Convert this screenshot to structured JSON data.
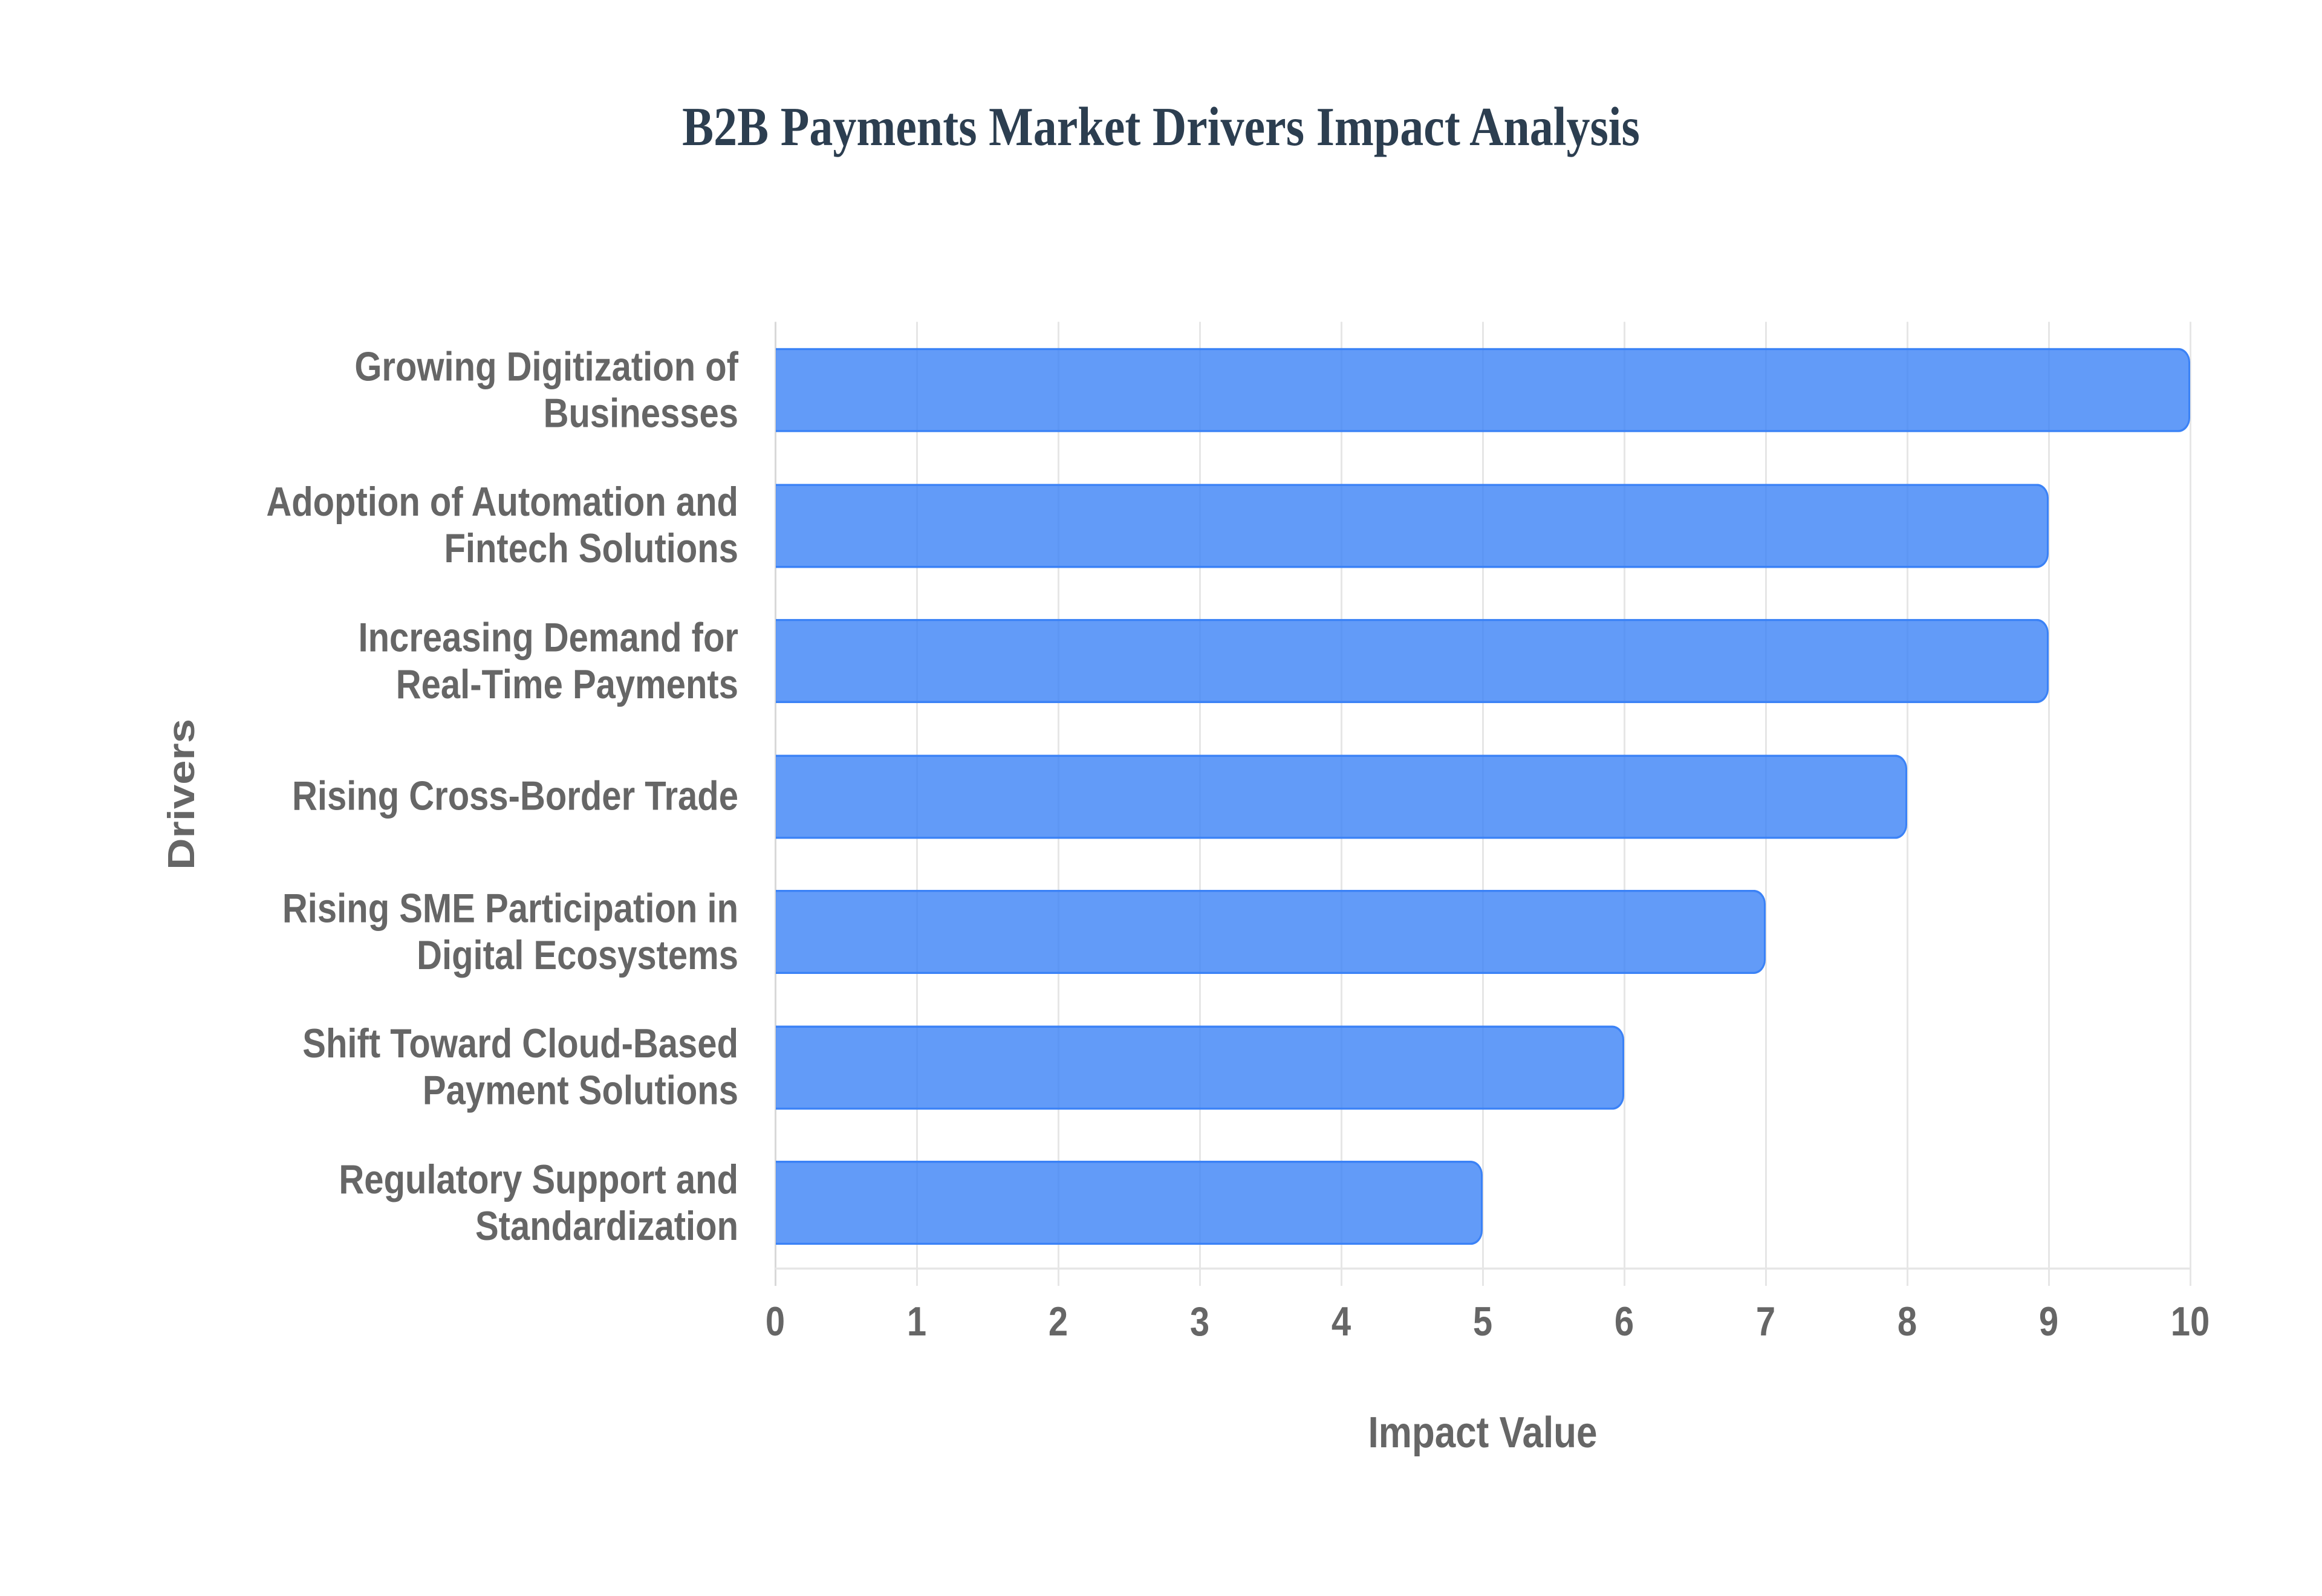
{
  "title": "B2B Payments Market Drivers Impact Analysis",
  "x_axis": {
    "title": "Impact Value",
    "ticks": [
      "0",
      "1",
      "2",
      "3",
      "4",
      "5",
      "6",
      "7",
      "8",
      "9",
      "10"
    ]
  },
  "y_axis": {
    "title": "Drivers"
  },
  "bars": [
    {
      "label": "Growing Digitization of\nBusinesses",
      "value": 10
    },
    {
      "label": "Adoption of Automation and\nFintech Solutions",
      "value": 9
    },
    {
      "label": "Increasing Demand for\nReal-Time Payments",
      "value": 9
    },
    {
      "label": "Rising Cross-Border Trade",
      "value": 8
    },
    {
      "label": "Rising SME Participation in\nDigital Ecosystems",
      "value": 7
    },
    {
      "label": "Shift Toward Cloud-Based\nPayment Solutions",
      "value": 6
    },
    {
      "label": "Regulatory Support and\nStandardization",
      "value": 5
    }
  ],
  "colors": {
    "bar_fill": "#629bf8",
    "bar_border": "#3b82f6",
    "title": "#2c3e50",
    "text": "#666666",
    "grid": "#e6e6e6"
  },
  "chart_data": {
    "type": "bar",
    "orientation": "horizontal",
    "title": "B2B Payments Market Drivers Impact Analysis",
    "xlabel": "Impact Value",
    "ylabel": "Drivers",
    "categories": [
      "Growing Digitization of Businesses",
      "Adoption of Automation and Fintech Solutions",
      "Increasing Demand for Real-Time Payments",
      "Rising Cross-Border Trade",
      "Rising SME Participation in Digital Ecosystems",
      "Shift Toward Cloud-Based Payment Solutions",
      "Regulatory Support and Standardization"
    ],
    "values": [
      10,
      9,
      9,
      8,
      7,
      6,
      5
    ],
    "xlim": [
      0,
      10
    ],
    "x_ticks": [
      0,
      1,
      2,
      3,
      4,
      5,
      6,
      7,
      8,
      9,
      10
    ],
    "grid": true,
    "legend": null
  }
}
